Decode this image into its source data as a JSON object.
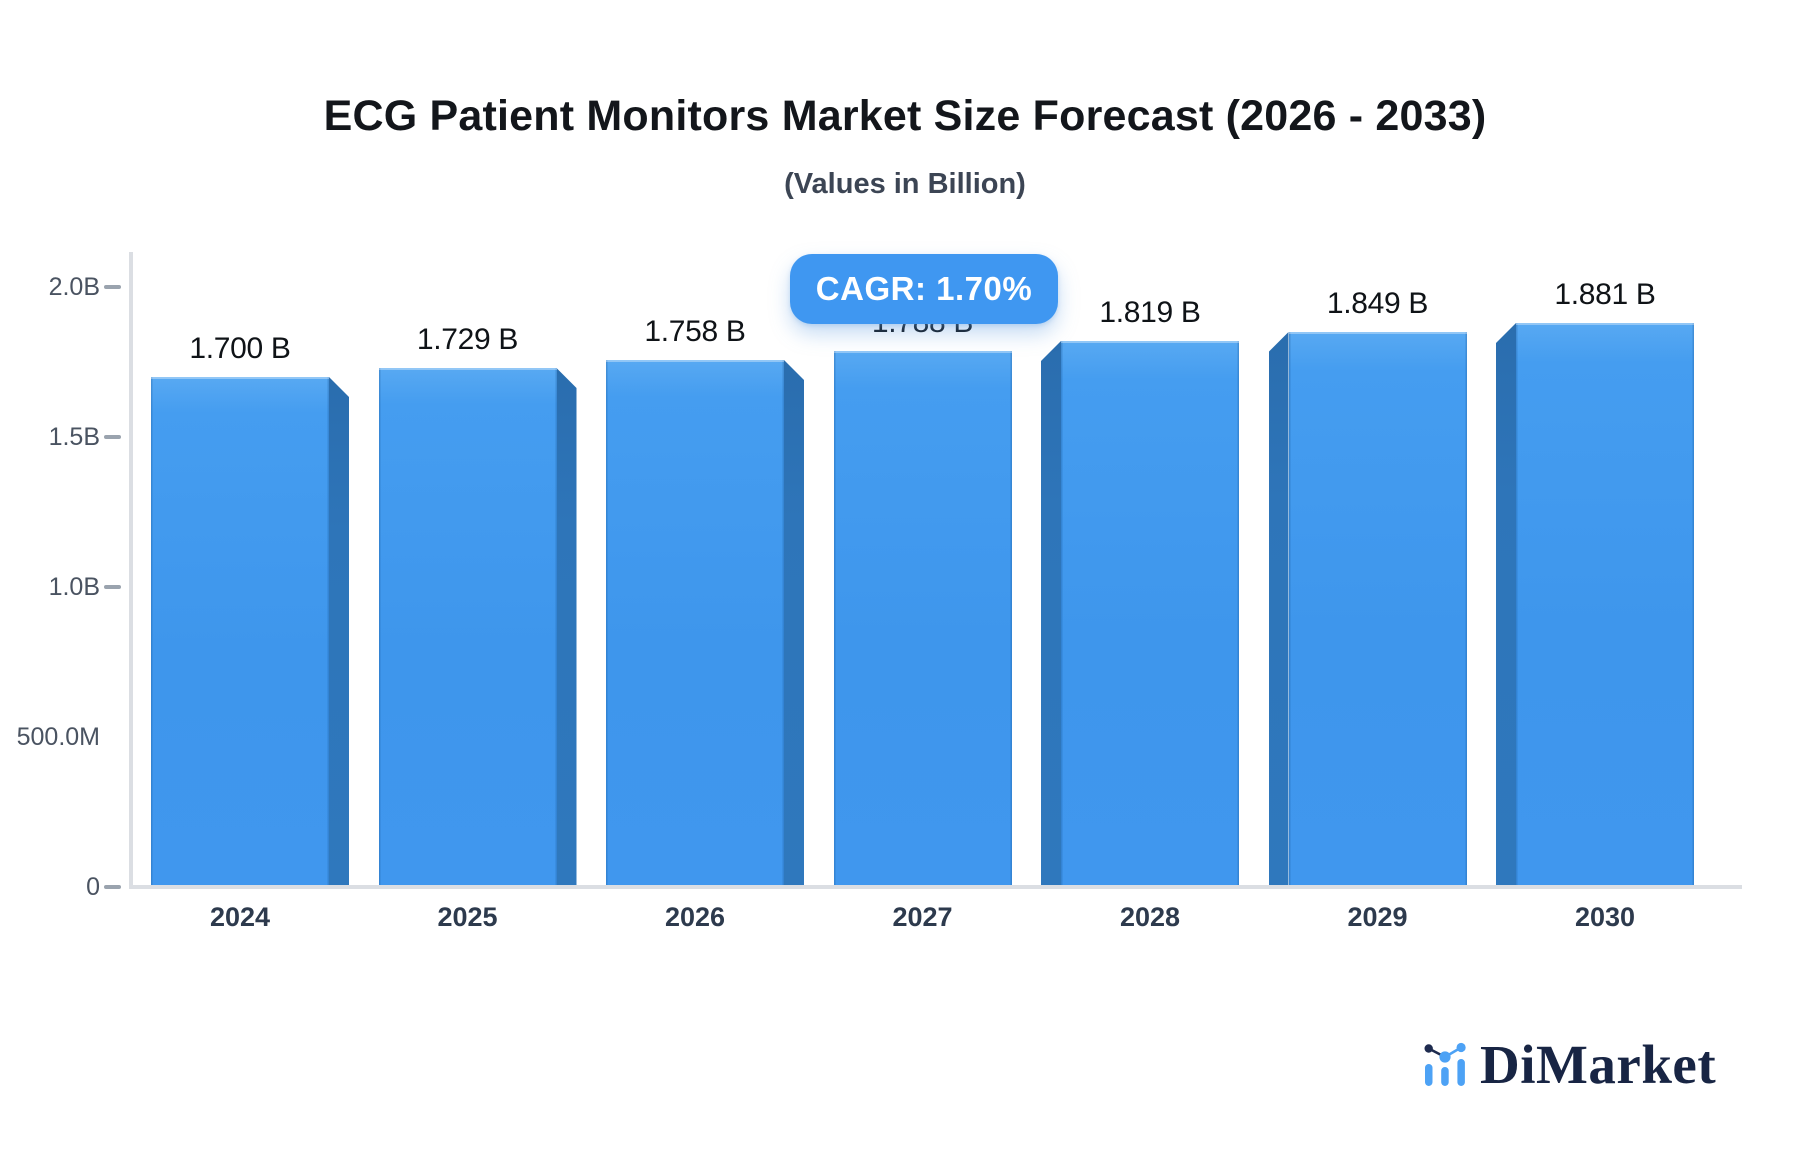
{
  "header": {
    "title": "ECG Patient Monitors Market Size Forecast (2026 - 2033)",
    "subtitle": "(Values in Billion)"
  },
  "brand": {
    "name": "DiMarket"
  },
  "chart_data": {
    "type": "bar",
    "title": "ECG Patient Monitors Market Size Forecast (2026 - 2033)",
    "subtitle": "(Values in Billion)",
    "annotation": "CAGR: 1.70%",
    "categories": [
      "2024",
      "2025",
      "2026",
      "2027",
      "2028",
      "2029",
      "2030"
    ],
    "values": [
      1.7,
      1.729,
      1.758,
      1.788,
      1.819,
      1.849,
      1.881
    ],
    "labels": [
      "1.700 B",
      "1.729 B",
      "1.758 B",
      "1.788 B",
      "1.819 B",
      "1.849 B",
      "1.881 B"
    ],
    "unit": "B",
    "xlabel": "",
    "ylabel": "",
    "ylim": [
      0,
      2.0
    ],
    "grid": false,
    "legend": false,
    "y_ticks": [
      {
        "label": "2.0B",
        "value": 2.0,
        "dash": true
      },
      {
        "label": "1.5B",
        "value": 1.5,
        "dash": true
      },
      {
        "label": "1.0B",
        "value": 1.0,
        "dash": true
      },
      {
        "label": "500.0M",
        "value": 0.5,
        "dash": false
      },
      {
        "label": "0",
        "value": 0.0,
        "dash": true
      }
    ],
    "colors": {
      "bar_front": "#3e96ec",
      "bar_front_highlight": "#58a9f2",
      "bar_side": "#2e75b9",
      "badge_bg": "#3f97f1",
      "badge_text": "#ffffff",
      "axis": "#dbdee3",
      "tick_text": "#4a5361",
      "year_text": "#2d3a4d",
      "value_text": "#0f1317"
    }
  }
}
